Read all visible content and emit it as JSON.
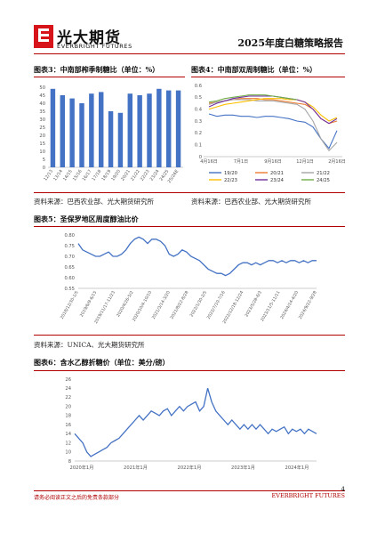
{
  "header": {
    "brand_cn": "光大期货",
    "brand_en": "EVERBRIGHT FUTURES",
    "report_title": "2025年度白糖策略报告"
  },
  "fig3": {
    "caption": "图表3：中南部榨季制糖比（单位：%）",
    "source": "资料来源：巴西农业部、光大期货研究所"
  },
  "fig4": {
    "caption": "图表4：中南部双周制糖比（单位：%）",
    "source": "资料来源：巴西农业部、光大期货研究所"
  },
  "fig5": {
    "caption": "图表5：圣保罗地区周度醇油比价",
    "source": "资料来源：UNICA、光大期货研究所"
  },
  "fig6": {
    "caption": "图表6：含水乙醇折糖价（单位：美分/磅）"
  },
  "footer": {
    "disclaimer": "请务必阅读正文之后的免责条款部分",
    "brand": "EVERBRIGHT FUTURES",
    "page": "4"
  },
  "chart_data": [
    {
      "id": "fig3",
      "type": "bar",
      "categories": [
        "12/13",
        "13/14",
        "14/15",
        "15/16",
        "16/17",
        "17/18",
        "18/19",
        "19/20",
        "20/21",
        "21/22",
        "22/23",
        "23/24",
        "24/25",
        "25/26E"
      ],
      "values": [
        49,
        45,
        43,
        40,
        46,
        47,
        35,
        34,
        46,
        45,
        46,
        49,
        48,
        48
      ],
      "ylim": [
        0,
        50
      ],
      "yticks": [
        0,
        5,
        10,
        15,
        20,
        25,
        30,
        35,
        40,
        45,
        50
      ],
      "color": "#4472c4",
      "grid": false
    },
    {
      "id": "fig4",
      "type": "line",
      "x_ticks": [
        "4月16日",
        "7月1日",
        "9月16日",
        "12月1日",
        "2月16日"
      ],
      "ylim": [
        0,
        0.6
      ],
      "yticks": [
        0,
        0.1,
        0.2,
        0.3,
        0.4,
        0.5,
        0.6
      ],
      "legend": "bottom",
      "series": [
        {
          "name": "19/20",
          "color": "#4472c4",
          "values": [
            0.36,
            0.34,
            0.35,
            0.35,
            0.34,
            0.34,
            0.33,
            0.34,
            0.34,
            0.33,
            0.32,
            0.3,
            0.29,
            0.25,
            0.15,
            0.07,
            0.22
          ]
        },
        {
          "name": "20/21",
          "color": "#ed7d31",
          "values": [
            0.45,
            0.46,
            0.47,
            0.48,
            0.49,
            0.49,
            0.49,
            0.48,
            0.48,
            0.47,
            0.46,
            0.45,
            0.44,
            0.4,
            0.32,
            0.28,
            0.3
          ]
        },
        {
          "name": "21/22",
          "color": "#a5a5a5",
          "values": [
            0.44,
            0.46,
            0.47,
            0.48,
            0.48,
            0.48,
            0.47,
            0.47,
            0.47,
            0.46,
            0.45,
            0.44,
            0.4,
            0.3,
            0.15,
            0.05,
            0.12
          ]
        },
        {
          "name": "22/23",
          "color": "#ffc000",
          "values": [
            0.4,
            0.42,
            0.44,
            0.45,
            0.46,
            0.47,
            0.48,
            0.49,
            0.49,
            0.49,
            0.48,
            0.48,
            0.46,
            0.42,
            0.35,
            0.3,
            0.33
          ]
        },
        {
          "name": "23/24",
          "color": "#7030a0",
          "values": [
            0.42,
            0.45,
            0.47,
            0.49,
            0.5,
            0.51,
            0.51,
            0.51,
            0.51,
            0.5,
            0.49,
            0.48,
            0.46,
            0.4,
            0.32,
            0.28,
            0.32
          ]
        },
        {
          "name": "24/25",
          "color": "#70ad47",
          "values": [
            0.46,
            0.47,
            0.49,
            0.5,
            0.51,
            0.52,
            0.52,
            0.52,
            0.51,
            0.5,
            0.49,
            0.48
          ]
        }
      ]
    },
    {
      "id": "fig5",
      "type": "line",
      "x_ticks": [
        "2018/12/30-1/5",
        "2019/6/9-6/15",
        "2019/11/17-11/23",
        "2020/4/26-5/2",
        "2020/10/4-10/10",
        "2021/3/14-3/20",
        "2021/8/22-8/28",
        "2022/1/30-2/5",
        "2022/7/10-7/16",
        "2022/12/18-12/24",
        "2023/5/28-6/3",
        "2023/11/5-11/11",
        "2024/4/14-4/20",
        "2024/9/22-9/28"
      ],
      "ylim": [
        0.55,
        0.8
      ],
      "yticks": [
        0.55,
        0.6,
        0.65,
        0.7,
        0.75,
        0.8
      ],
      "color": "#4472c4",
      "values": [
        0.76,
        0.73,
        0.72,
        0.71,
        0.7,
        0.7,
        0.71,
        0.72,
        0.7,
        0.7,
        0.71,
        0.73,
        0.76,
        0.78,
        0.79,
        0.78,
        0.76,
        0.78,
        0.78,
        0.77,
        0.75,
        0.71,
        0.7,
        0.71,
        0.73,
        0.72,
        0.7,
        0.69,
        0.68,
        0.66,
        0.64,
        0.63,
        0.62,
        0.62,
        0.61,
        0.62,
        0.64,
        0.66,
        0.67,
        0.67,
        0.66,
        0.67,
        0.66,
        0.67,
        0.68,
        0.68,
        0.67,
        0.68,
        0.67,
        0.68,
        0.68,
        0.67,
        0.68,
        0.67,
        0.68,
        0.68
      ]
    },
    {
      "id": "fig6",
      "type": "line",
      "x_ticks": [
        "2020年1月",
        "2021年1月",
        "2022年1月",
        "2023年1月",
        "2024年1月"
      ],
      "ylim": [
        8,
        26
      ],
      "yticks": [
        8,
        10,
        12,
        14,
        16,
        18,
        20,
        22,
        24,
        26
      ],
      "color": "#4472c4",
      "values": [
        14,
        13,
        12,
        10,
        9,
        9.5,
        10,
        10.5,
        11,
        12,
        12.5,
        13,
        14,
        15,
        16,
        17,
        18,
        17,
        18,
        19,
        18.5,
        18,
        19,
        19.5,
        18,
        19,
        20,
        19,
        20,
        20.5,
        21,
        19,
        20,
        24,
        21,
        19,
        18,
        17,
        16,
        17,
        16,
        15,
        16,
        15,
        16,
        15,
        16,
        15,
        14,
        15,
        14.5,
        15,
        15.5,
        14,
        15,
        14.5,
        15,
        14,
        15,
        14.5,
        14
      ]
    }
  ]
}
